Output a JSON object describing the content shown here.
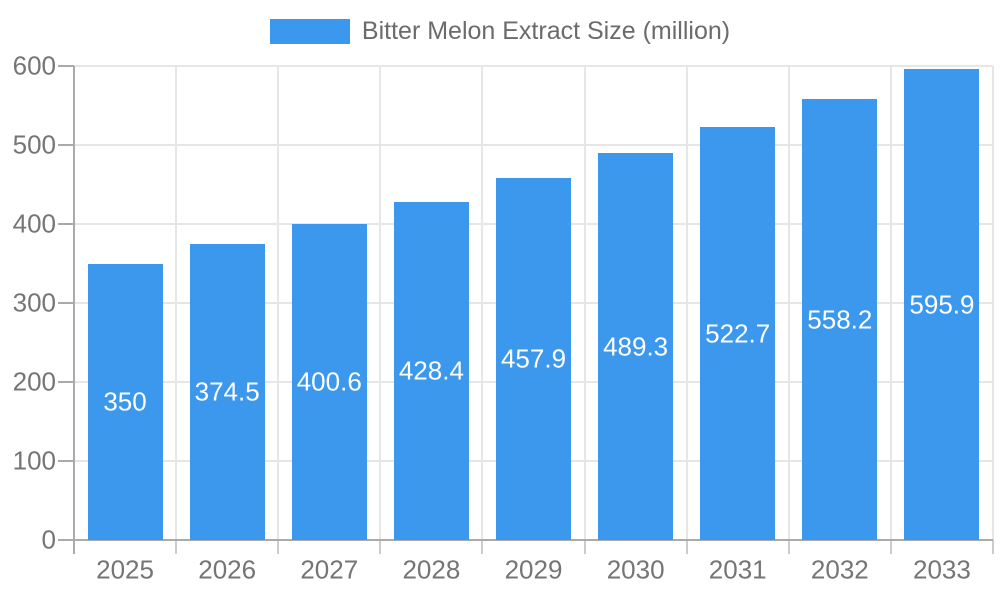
{
  "chart_data": {
    "type": "bar",
    "legend": "Bitter Melon Extract Size (million)",
    "categories": [
      "2025",
      "2026",
      "2027",
      "2028",
      "2029",
      "2030",
      "2031",
      "2032",
      "2033"
    ],
    "values": [
      350,
      374.5,
      400.6,
      428.4,
      457.9,
      489.3,
      522.7,
      558.2,
      595.9
    ],
    "value_labels": [
      "350",
      "374.5",
      "400.6",
      "428.4",
      "457.9",
      "489.3",
      "522.7",
      "558.2",
      "595.9"
    ],
    "xlabel": "",
    "ylabel": "",
    "ylim": [
      0,
      600
    ],
    "yticks": [
      0,
      100,
      200,
      300,
      400,
      500,
      600
    ],
    "grid": true,
    "legend_position": "top-center",
    "colors": {
      "bar": "#3b98ec",
      "grid_line": "#e6e6e6",
      "axis_line": "#aaaaaa",
      "category_tick": "#cccccc",
      "tick_text": "#757575",
      "legend_text": "#6b6b6b",
      "value_text": "#ffffff",
      "background": "#ffffff"
    }
  }
}
